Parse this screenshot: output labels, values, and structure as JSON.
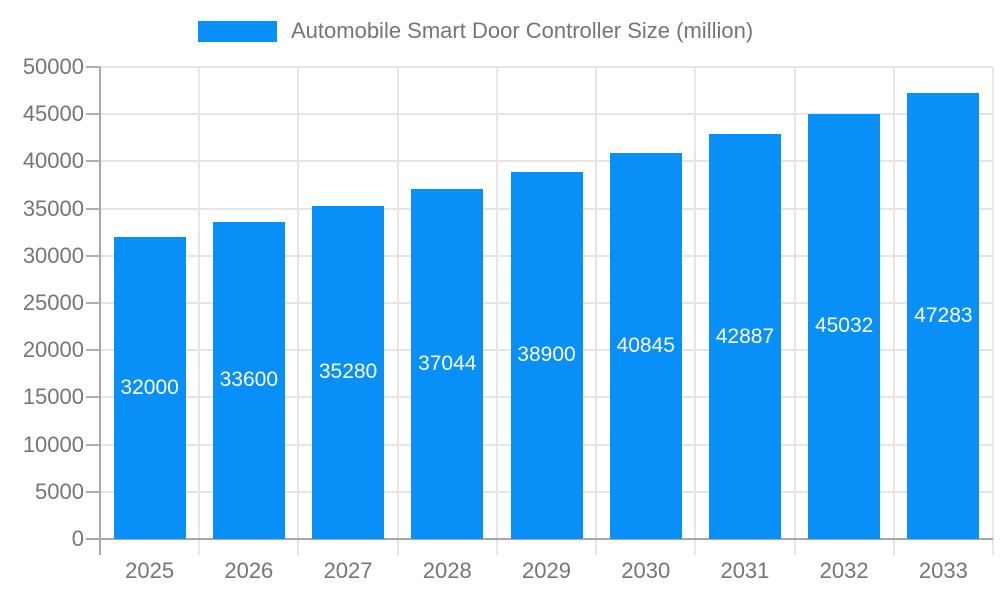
{
  "legend": {
    "label": "Automobile Smart Door Controller Size (million)"
  },
  "chart_data": {
    "type": "bar",
    "title": "Automobile Smart Door Controller Size (million)",
    "categories": [
      "2025",
      "2026",
      "2027",
      "2028",
      "2029",
      "2030",
      "2031",
      "2032",
      "2033"
    ],
    "values": [
      32000,
      33600,
      35280,
      37044,
      38900,
      40845,
      42887,
      45032,
      47283
    ],
    "xlabel": "",
    "ylabel": "",
    "ylim": [
      0,
      50000
    ],
    "ytick_step": 5000,
    "ytick_labels": [
      "0",
      "5000",
      "10000",
      "15000",
      "20000",
      "25000",
      "30000",
      "35000",
      "40000",
      "45000",
      "50000"
    ],
    "grid": true,
    "legend_position": "top-center",
    "bar_label_position": "inside-center",
    "colors": {
      "bar": "#0890f8",
      "bar_label": "#ffffff",
      "grid_line": "#e5e5e5",
      "axis_line": "#a8a8a8",
      "tick_mark": "#b0b0b0",
      "tick_text": "#757575",
      "title_text": "#757575",
      "background": "#ffffff"
    }
  }
}
